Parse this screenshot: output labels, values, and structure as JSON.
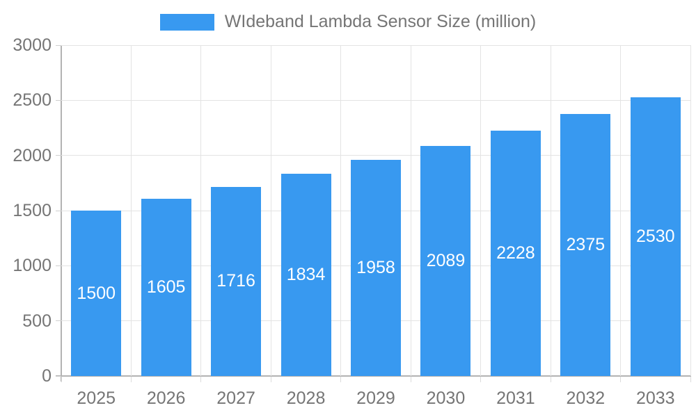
{
  "chart_data": {
    "type": "bar",
    "title": "",
    "legend": [
      {
        "label": "WIdeband Lambda Sensor Size (million)",
        "color": "#3899F0"
      }
    ],
    "legend_position": "top",
    "categories": [
      "2025",
      "2026",
      "2027",
      "2028",
      "2029",
      "2030",
      "2031",
      "2032",
      "2033"
    ],
    "series": [
      {
        "name": "WIdeband Lambda Sensor Size (million)",
        "values": [
          1500,
          1605,
          1716,
          1834,
          1958,
          2089,
          2228,
          2375,
          2530
        ]
      }
    ],
    "bar_labels": [
      "1500",
      "1605",
      "1716",
      "1834",
      "1958",
      "2089",
      "2228",
      "2375",
      "2530"
    ],
    "bar_label_position": "center",
    "xlabel": "",
    "ylabel": "",
    "ylim": [
      0,
      3000
    ],
    "yticks": [
      0,
      500,
      1000,
      1500,
      2000,
      2500,
      3000
    ],
    "grid": true,
    "colors": {
      "bar": "#3899F0",
      "bar_label": "#FFFFFF",
      "grid": "#E3E3E3",
      "axis": "#B3B3B3",
      "text": "#757575",
      "background": "#FFFFFF"
    }
  }
}
